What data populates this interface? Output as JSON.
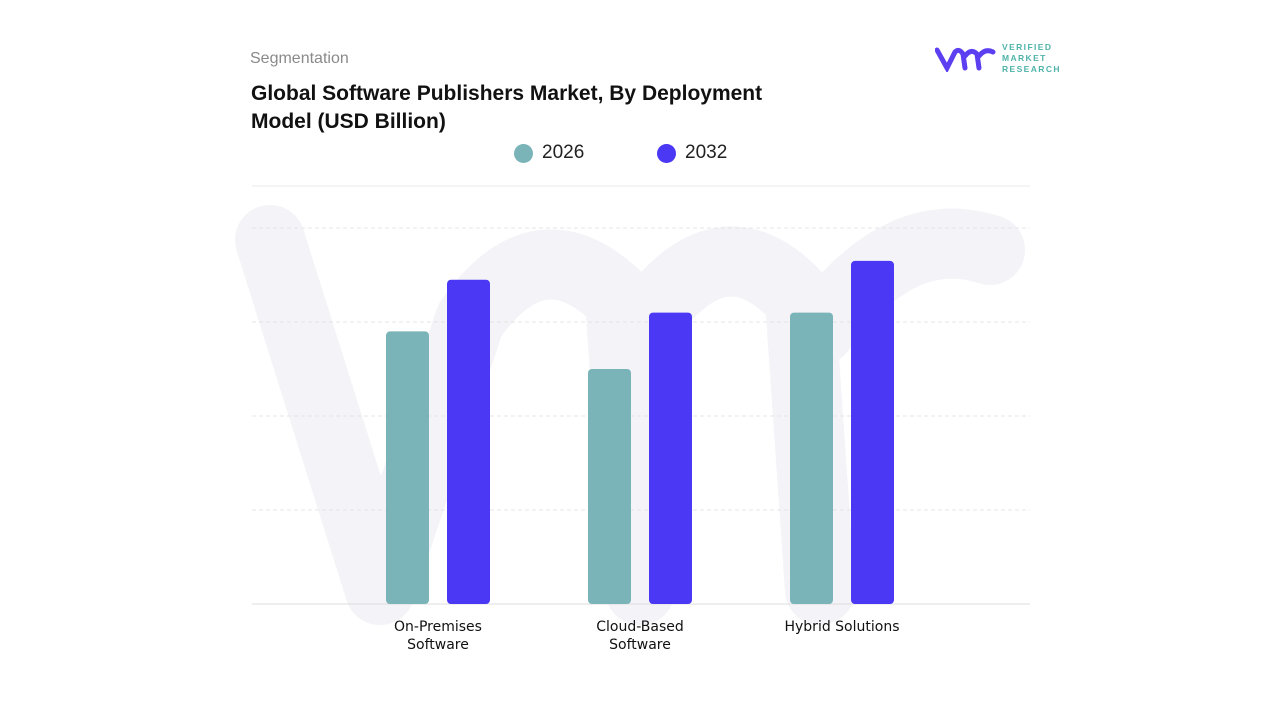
{
  "header": {
    "section": "Segmentation",
    "title": "Global Software Publishers Market, By Deployment Model (USD Billion)"
  },
  "logo": {
    "text": "VERIFIED MARKET RESEARCH",
    "line1": "VERIFIED",
    "line2": "MARKET",
    "line3": "RESEARCH"
  },
  "chart_data": {
    "type": "bar",
    "title": "Global Software Publishers Market, By Deployment Model (USD Billion)",
    "categories": [
      "On-Premises Software",
      "Cloud-Based Software",
      "Hybrid Solutions"
    ],
    "category_lines": [
      [
        "On-Premises",
        "Software"
      ],
      [
        "Cloud-Based",
        "Software"
      ],
      [
        "Hybrid Solutions"
      ]
    ],
    "series": [
      {
        "name": "2026",
        "color": "#7ab4b8",
        "values": [
          2.9,
          2.5,
          3.1
        ]
      },
      {
        "name": "2032",
        "color": "#4a38f5",
        "values": [
          3.45,
          3.1,
          3.65
        ]
      }
    ],
    "ylim": [
      0,
      4.5
    ],
    "grid": true,
    "legend": "top-center",
    "xlabel": "",
    "ylabel": ""
  }
}
